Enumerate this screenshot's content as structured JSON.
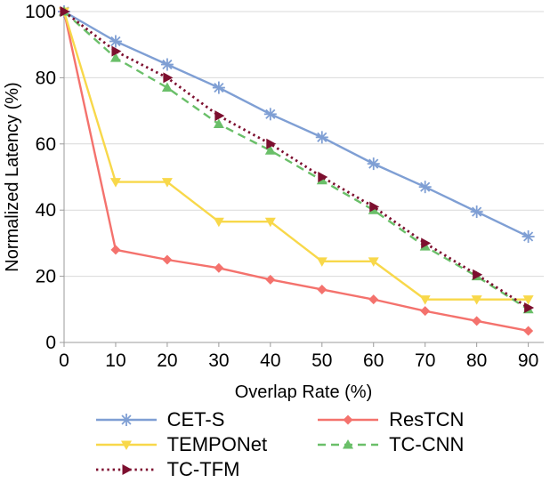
{
  "chart_data": {
    "type": "line",
    "title": "",
    "xlabel": "Overlap Rate (%)",
    "ylabel": "Normalized Latency (%)",
    "x": [
      0,
      10,
      20,
      30,
      40,
      50,
      60,
      70,
      80,
      90
    ],
    "xticks": [
      0,
      10,
      20,
      30,
      40,
      50,
      60,
      70,
      80,
      90
    ],
    "yticks": [
      0,
      20,
      40,
      60,
      80,
      100
    ],
    "xlim": [
      0,
      93
    ],
    "ylim": [
      0,
      100
    ],
    "grid": "horizontal",
    "legend_position": "bottom",
    "legend_columns": 2,
    "series": [
      {
        "name": "CET-S",
        "color": "#7f9fd4",
        "marker": "asterisk",
        "line_style": "solid",
        "values": [
          100,
          91,
          84,
          77,
          69,
          62,
          54,
          47,
          39.5,
          32
        ]
      },
      {
        "name": "ResTCN",
        "color": "#f4726d",
        "marker": "diamond",
        "line_style": "solid",
        "values": [
          100,
          28,
          25,
          22.5,
          19,
          16,
          13,
          9.5,
          6.5,
          3.5
        ]
      },
      {
        "name": "TEMPONet",
        "color": "#f8d84a",
        "marker": "triangle-down",
        "line_style": "solid",
        "values": [
          100,
          48.5,
          48.5,
          36.5,
          36.5,
          24.5,
          24.5,
          13,
          13,
          13
        ]
      },
      {
        "name": "TC-CNN",
        "color": "#6abf69",
        "marker": "triangle-up",
        "line_style": "dashed",
        "values": [
          100,
          86,
          77,
          66,
          58,
          49,
          40,
          29,
          20,
          10
        ]
      },
      {
        "name": "TC-TFM",
        "color": "#7d0f2f",
        "marker": "triangle-right",
        "line_style": "dotted",
        "values": [
          100,
          88,
          80,
          68.5,
          60,
          50,
          41,
          30,
          20.5,
          10.5
        ]
      }
    ]
  }
}
